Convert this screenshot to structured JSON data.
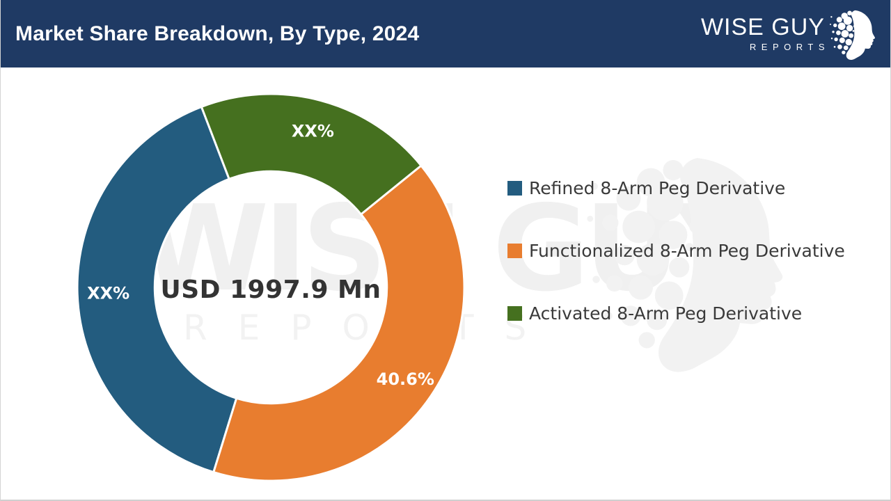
{
  "header": {
    "title": "Market Share Breakdown, By Type, 2024",
    "logo": {
      "line1": "WISE GUY",
      "line2": "REPORTS"
    }
  },
  "watermark": {
    "line1": "WISE GUY",
    "line2": "REPORTS"
  },
  "chart_data": {
    "type": "pie",
    "subtype": "donut",
    "title": "Market Share Breakdown, By Type, 2024",
    "center_label": "USD 1997.9 Mn",
    "donut_hole_ratio": 0.6,
    "legend_position": "right",
    "slices": [
      {
        "label": "Refined 8-Arm Peg Derivative",
        "color": "#235c7f",
        "value_label": "XX%",
        "value_pct": 39.4,
        "start_deg": 197.2,
        "end_deg": 339.0
      },
      {
        "label": "Functionalized 8-Arm Peg Derivative",
        "color": "#e87d2f",
        "value_label": "40.6%",
        "value_pct": 40.6,
        "start_deg": 51.0,
        "end_deg": 197.2
      },
      {
        "label": "Activated 8-Arm Peg Derivative",
        "color": "#45701f",
        "value_label": "XX%",
        "value_pct": 20.0,
        "start_deg": 339.0,
        "end_deg": 411.0
      }
    ]
  }
}
